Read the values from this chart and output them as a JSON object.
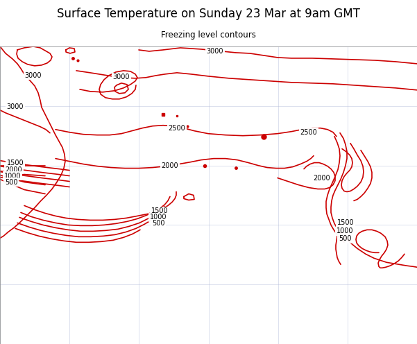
{
  "title": "Surface Temperature on Sunday 23 Mar at 9am GMT",
  "subtitle": "Freezing level contours",
  "bg_color": "#d8dcf0",
  "title_bg": "#ffffff",
  "line_color": "#cc0000",
  "grid_color": "#b0b8d8",
  "figsize": [
    6.01,
    4.96
  ],
  "dpi": 100
}
